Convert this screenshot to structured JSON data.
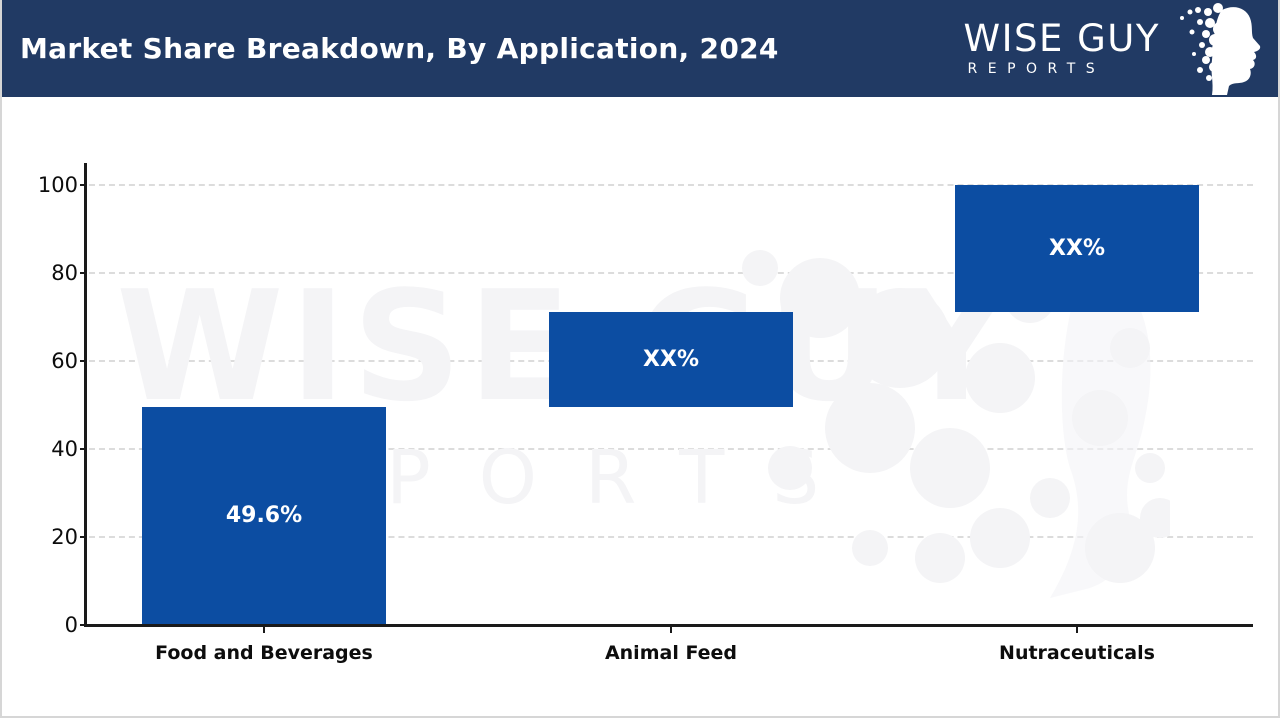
{
  "header": {
    "title": "Market Share Breakdown, By Application, 2024",
    "logo": {
      "line1": "WISE GUY",
      "line2": "REPORTS"
    }
  },
  "watermark": {
    "line1": "WISE GUY",
    "line2": "REPORTS"
  },
  "colors": {
    "header_bg": "#213A64",
    "bar": "#0C4DA2",
    "bar_label": "#FFFFFF",
    "grid": "#DCDCDC",
    "axis": "#1A1A1A",
    "text": "#0D0D0D",
    "watermark": "#F4F4F6",
    "frame": "#D6D6D6"
  },
  "chart_data": {
    "type": "bar",
    "variant": "floating-waterfall-bars",
    "title": "Market Share Breakdown, By Application, 2024",
    "categories": [
      "Food and Beverages",
      "Animal Feed",
      "Nutraceuticals"
    ],
    "segments": [
      {
        "category": "Food and Beverages",
        "start": 0,
        "end": 49.6,
        "label": "49.6%"
      },
      {
        "category": "Animal Feed",
        "start": 49.6,
        "end": 71,
        "label": "XX%"
      },
      {
        "category": "Nutraceuticals",
        "start": 71,
        "end": 100,
        "label": "XX%"
      }
    ],
    "xlabel": "",
    "ylabel": "",
    "yticks": [
      0,
      20,
      40,
      60,
      80,
      100
    ],
    "ylim": [
      0,
      104.8
    ],
    "grid": "horizontal-dashed",
    "legend": "none"
  }
}
